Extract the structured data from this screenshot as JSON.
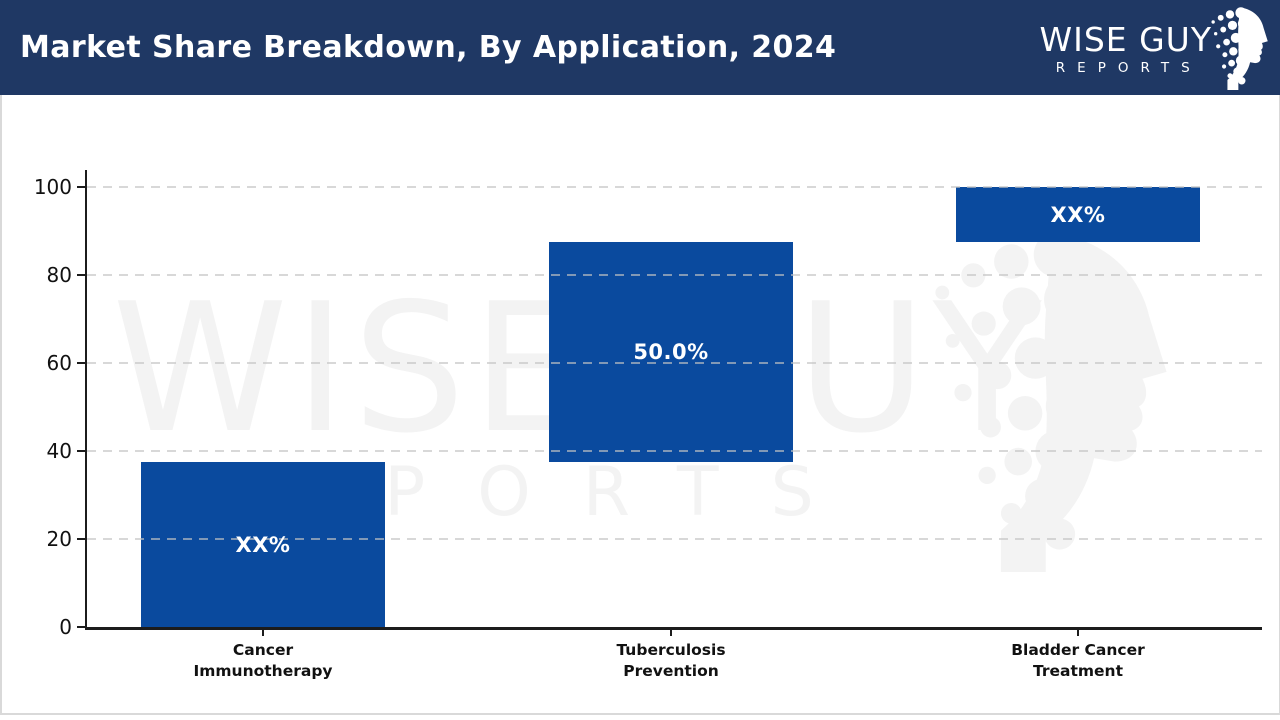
{
  "header": {
    "title": "Market Share Breakdown, By Application, 2024",
    "logo": {
      "line1": "WISE GUY",
      "line2": "REPORTS"
    }
  },
  "watermark": {
    "line1": "WISE GUY",
    "line2": "REPORTS"
  },
  "chart_data": {
    "type": "bar",
    "subtype": "waterfall",
    "title": "Market Share Breakdown, By Application, 2024",
    "categories": [
      [
        "Cancer",
        "Immunotherapy"
      ],
      [
        "Tuberculosis",
        "Prevention"
      ],
      [
        "Bladder Cancer",
        "Treatment"
      ]
    ],
    "segments": [
      {
        "category": "Cancer Immunotherapy",
        "from": 0,
        "to": 37.5,
        "label": "XX%"
      },
      {
        "category": "Tuberculosis Prevention",
        "from": 37.5,
        "to": 87.5,
        "label": "50.0%"
      },
      {
        "category": "Bladder Cancer Treatment",
        "from": 87.5,
        "to": 100,
        "label": "XX%"
      }
    ],
    "yticks": [
      0,
      20,
      40,
      60,
      80,
      100
    ],
    "ylim": [
      0,
      104
    ],
    "ylabel": "",
    "xlabel": "",
    "grid": "horizontal dashed, drawn over bars",
    "legend": "none",
    "bar_color": "#0a4a9e",
    "bar_label_color": "#ffffff"
  },
  "colors": {
    "header_bg": "#1f3864",
    "bar": "#0a4a9e",
    "grid": "#d9d9d9",
    "axis": "#1c1c1c",
    "watermark": "#f3f3f3",
    "edge_border": "#d9d9d9"
  }
}
